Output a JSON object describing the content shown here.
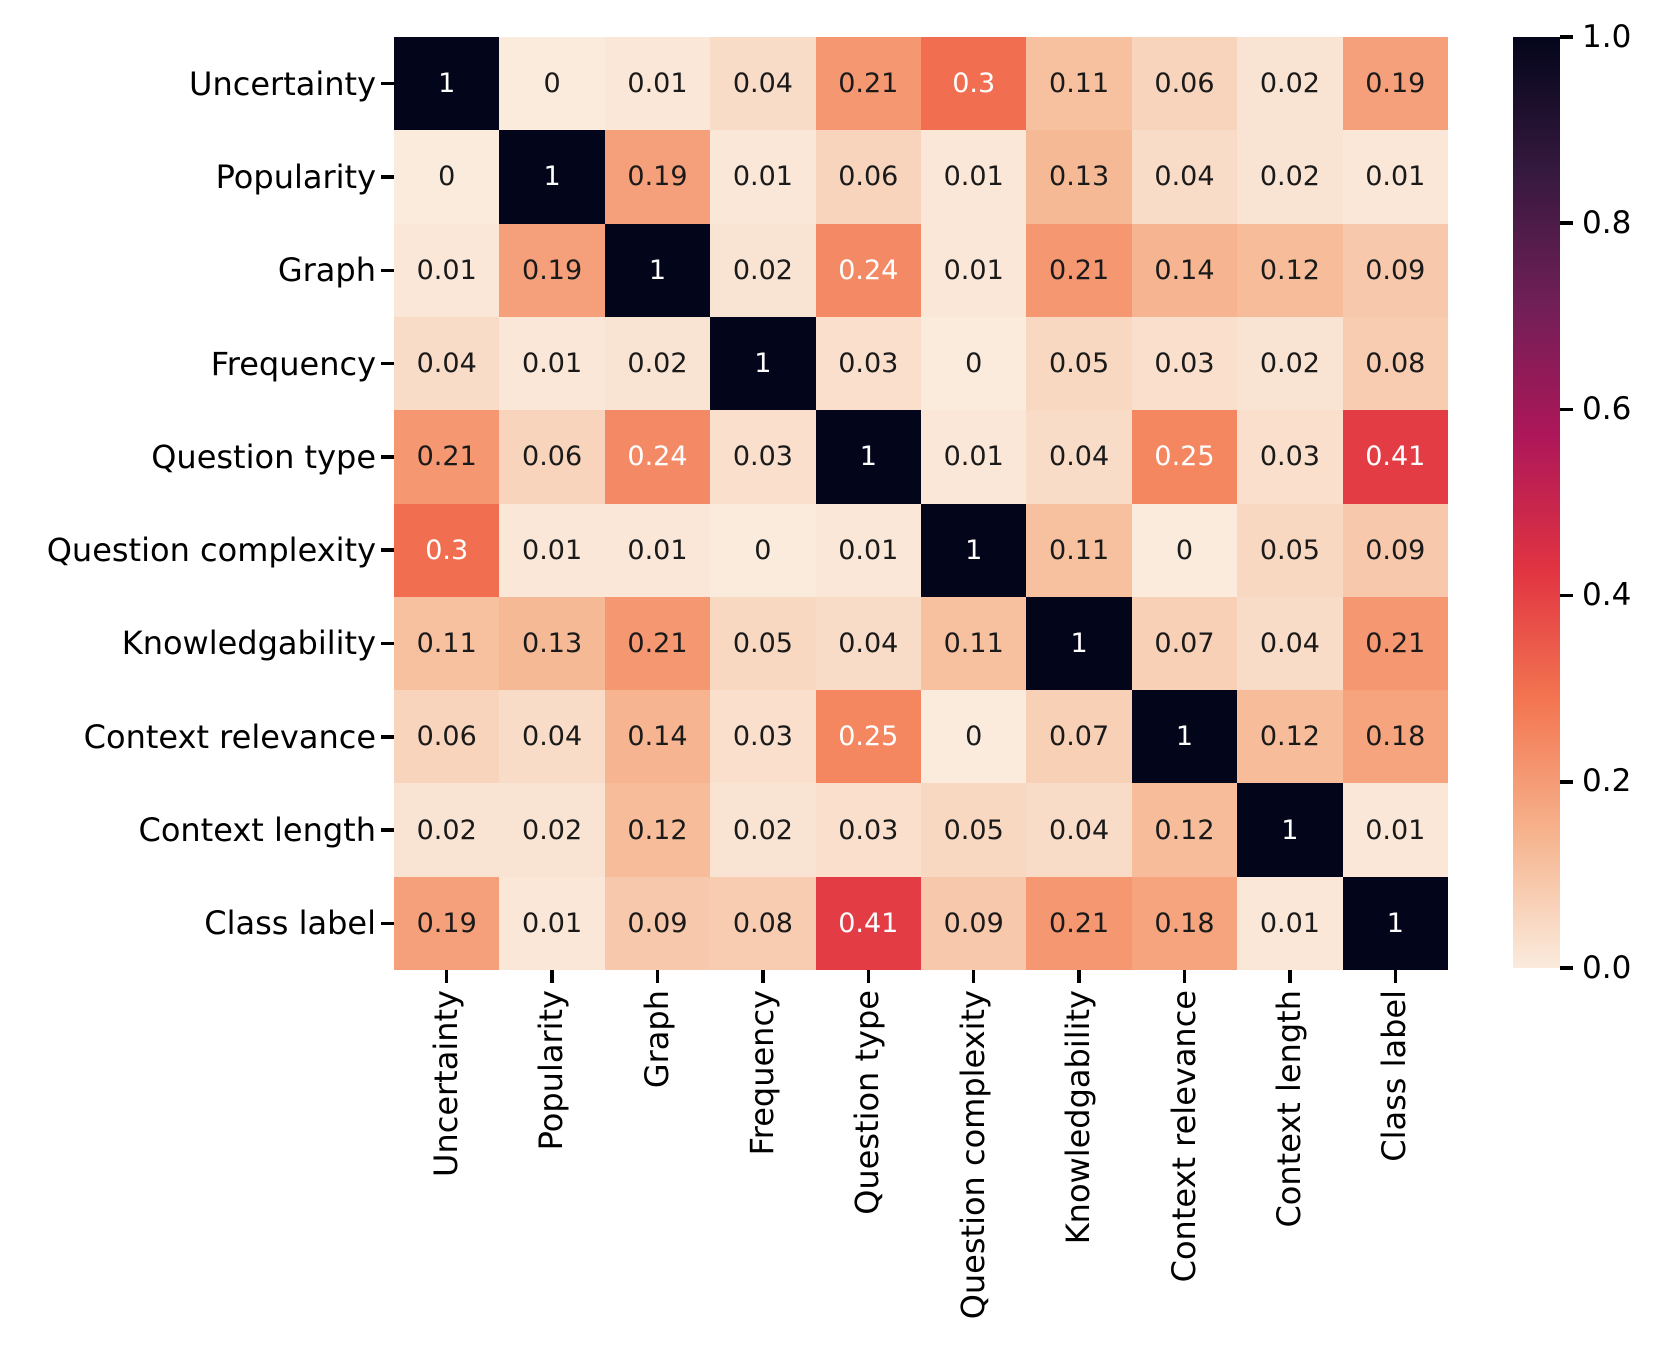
{
  "chart_data": {
    "type": "heatmap",
    "title": "",
    "xlabel": "",
    "ylabel": "",
    "categories": [
      "Uncertainty",
      "Popularity",
      "Graph",
      "Frequency",
      "Question type",
      "Question complexity",
      "Knowledgability",
      "Context relevance",
      "Context length",
      "Class label"
    ],
    "matrix": [
      [
        1,
        0,
        0.01,
        0.04,
        0.21,
        0.3,
        0.11,
        0.06,
        0.02,
        0.19
      ],
      [
        0,
        1,
        0.19,
        0.01,
        0.06,
        0.01,
        0.13,
        0.04,
        0.02,
        0.01
      ],
      [
        0.01,
        0.19,
        1,
        0.02,
        0.24,
        0.01,
        0.21,
        0.14,
        0.12,
        0.09
      ],
      [
        0.04,
        0.01,
        0.02,
        1,
        0.03,
        0,
        0.05,
        0.03,
        0.02,
        0.08
      ],
      [
        0.21,
        0.06,
        0.24,
        0.03,
        1,
        0.01,
        0.04,
        0.25,
        0.03,
        0.41
      ],
      [
        0.3,
        0.01,
        0.01,
        0,
        0.01,
        1,
        0.11,
        0,
        0.05,
        0.09
      ],
      [
        0.11,
        0.13,
        0.21,
        0.05,
        0.04,
        0.11,
        1,
        0.07,
        0.04,
        0.21
      ],
      [
        0.06,
        0.04,
        0.14,
        0.03,
        0.25,
        0,
        0.07,
        1,
        0.12,
        0.18
      ],
      [
        0.02,
        0.02,
        0.12,
        0.02,
        0.03,
        0.05,
        0.04,
        0.12,
        1,
        0.01
      ],
      [
        0.19,
        0.01,
        0.09,
        0.08,
        0.41,
        0.09,
        0.21,
        0.18,
        0.01,
        1
      ]
    ],
    "annotated": true,
    "grid": false,
    "colorbar": {
      "position": "right",
      "tick_labels": [
        "1.0",
        "0.8",
        "0.6",
        "0.4",
        "0.2",
        "0.0"
      ],
      "vmin": 0.0,
      "vmax": 1.0
    },
    "colormap": {
      "name": "rocket_r",
      "anchors": [
        {
          "value": 0.0,
          "color": "#FAEBDD"
        },
        {
          "value": 0.143,
          "color": "#F6B48E"
        },
        {
          "value": 0.286,
          "color": "#F37651"
        },
        {
          "value": 0.429,
          "color": "#E13342"
        },
        {
          "value": 0.571,
          "color": "#AD1759"
        },
        {
          "value": 0.714,
          "color": "#701F57"
        },
        {
          "value": 0.857,
          "color": "#35193E"
        },
        {
          "value": 1.0,
          "color": "#03051A"
        }
      ]
    },
    "annotation_colors": {
      "dark_text": "#1A1A1A",
      "light_text": "#FFFFFF",
      "light_text_threshold": 0.22
    },
    "axis_color": "#000000",
    "background_color": "#FFFFFF"
  }
}
